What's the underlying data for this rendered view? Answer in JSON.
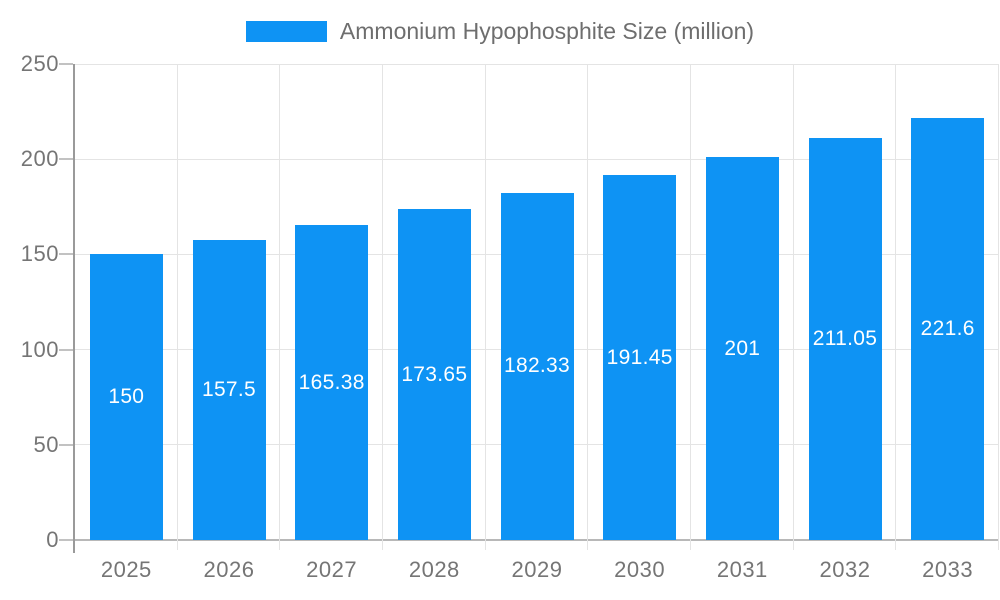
{
  "page": {
    "background": "#ffffff"
  },
  "chart_data": {
    "type": "bar",
    "title": "",
    "legend": {
      "label": "Ammonium Hypophosphite Size (million)",
      "position": "top-center"
    },
    "categories": [
      "2025",
      "2026",
      "2027",
      "2028",
      "2029",
      "2030",
      "2031",
      "2032",
      "2033"
    ],
    "series": [
      {
        "name": "Ammonium Hypophosphite Size (million)",
        "values": [
          150,
          157.5,
          165.38,
          173.65,
          182.33,
          191.45,
          201,
          211.05,
          221.6
        ],
        "value_labels": [
          "150",
          "157.5",
          "165.38",
          "173.65",
          "182.33",
          "191.45",
          "201",
          "211.05",
          "221.6"
        ]
      }
    ],
    "xlabel": "",
    "ylabel": "",
    "ylim": [
      0,
      250
    ],
    "y_ticks": [
      0,
      50,
      100,
      150,
      200,
      250
    ],
    "grid": true,
    "value_label_position": "inside-center",
    "colors": {
      "bar": "#0e93f4",
      "bar_label": "#ffffff",
      "axis_line": "#9a9a9a",
      "baseline": "#b8b8b8",
      "grid_line": "#e4e4e4",
      "tick": "#c2c2c2",
      "axis_text": "#757575",
      "legend_text": "#6e6e6e"
    }
  }
}
